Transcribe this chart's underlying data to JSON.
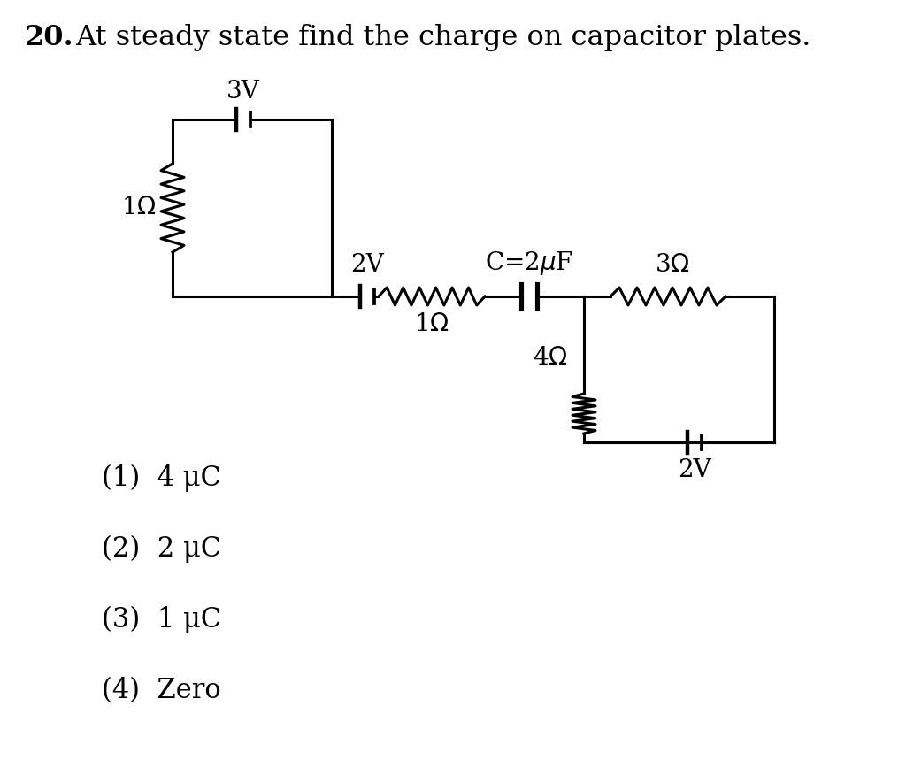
{
  "title_num": "20.",
  "title_text": "At steady state find the charge on capacitor plates.",
  "title_fontsize": 23,
  "bg_color": "#ffffff",
  "text_color": "#000000",
  "line_color": "#000000",
  "line_width": 2.2,
  "options": [
    "(1)  4 μC",
    "(2)  2 μC",
    "(3)  1 μC",
    "(4)  Zero"
  ],
  "options_fontsize": 22,
  "component_fontsize": 20
}
